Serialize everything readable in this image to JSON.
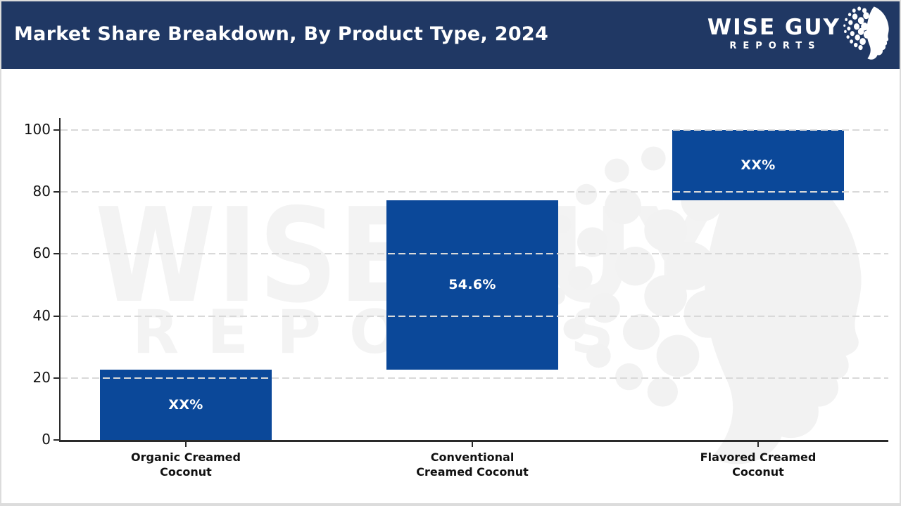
{
  "header": {
    "title": "Market Share Breakdown, By Product Type, 2024",
    "logo": {
      "line1": "WISE GUY",
      "line2": "REPORTS"
    }
  },
  "watermark": {
    "line1": "WISE GUY",
    "line2": "REPORTS"
  },
  "colors": {
    "header_bg": "#203864",
    "bar": "#0b4899",
    "grid": "#d9d9d9",
    "axis": "#2a2a2a",
    "bar_label": "#ffffff",
    "watermark": "#f3f3f3",
    "title_text": "#ffffff"
  },
  "chart_data": {
    "type": "bar",
    "subtype": "waterfall",
    "title": "Market Share Breakdown, By Product Type, 2024",
    "categories": [
      "Organic Creamed Coconut",
      "Conventional Creamed Coconut",
      "Flavored Creamed Coconut"
    ],
    "category_label_lines": [
      [
        "Organic Creamed",
        "Coconut"
      ],
      [
        "Conventional",
        "Creamed Coconut"
      ],
      [
        "Flavored Creamed",
        "Coconut"
      ]
    ],
    "segments": [
      {
        "category": "Organic Creamed Coconut",
        "start": 0,
        "end": 22.7,
        "label": "XX%"
      },
      {
        "category": "Conventional Creamed Coconut",
        "start": 22.7,
        "end": 77.3,
        "label": "54.6%"
      },
      {
        "category": "Flavored Creamed Coconut",
        "start": 77.3,
        "end": 100,
        "label": "XX%"
      }
    ],
    "ylim": [
      0,
      100
    ],
    "yticks": [
      0,
      20,
      40,
      60,
      80,
      100
    ],
    "grid": "dashed-horizontal-over-bars",
    "legend": "none",
    "xlabel": "",
    "ylabel": ""
  }
}
